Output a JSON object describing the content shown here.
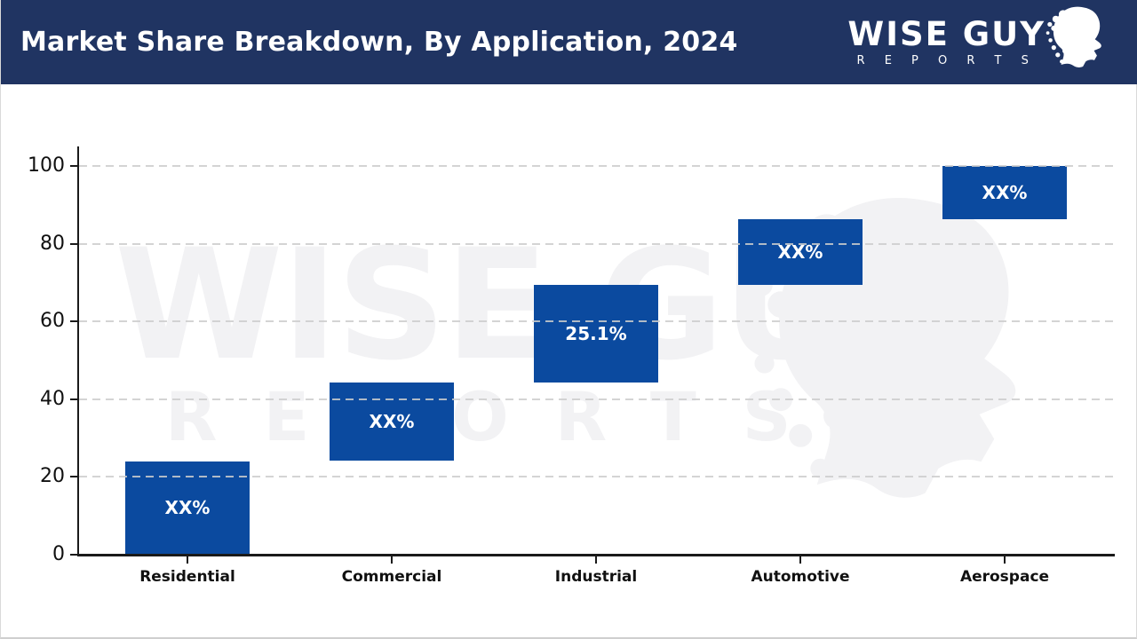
{
  "header": {
    "title": "Market Share Breakdown, By Application, 2024",
    "logo": {
      "line1": "WISE GUY",
      "line2": "R E P O R T S"
    }
  },
  "watermark": {
    "line1": "WISE GUY",
    "line2": "REPORTS"
  },
  "chart_data": {
    "type": "bar",
    "subtype": "floating-segment-waterfall",
    "title": "Market Share Breakdown, By Application, 2024",
    "categories": [
      "Residential",
      "Commercial",
      "Industrial",
      "Automotive",
      "Aerospace"
    ],
    "segments": [
      {
        "category": "Residential",
        "start": 0,
        "end": 24.0,
        "label": "XX%"
      },
      {
        "category": "Commercial",
        "start": 24.2,
        "end": 44.2,
        "label": "XX%"
      },
      {
        "category": "Industrial",
        "start": 44.3,
        "end": 69.4,
        "label": "25.1%"
      },
      {
        "category": "Automotive",
        "start": 69.3,
        "end": 86.4,
        "label": "XX%"
      },
      {
        "category": "Aerospace",
        "start": 86.4,
        "end": 100.0,
        "label": "XX%"
      }
    ],
    "xlabel": "",
    "ylabel": "",
    "ylim": [
      0,
      105
    ],
    "yticks": [
      0,
      20,
      40,
      60,
      80,
      100
    ],
    "grid": "horizontal-dashed",
    "legend": "none",
    "bar_color": "#0b4a9f",
    "bar_label_color": "#ffffff"
  },
  "colors": {
    "header_bg": "#203462",
    "bar": "#0b4a9f",
    "grid": "#d5d5d5",
    "axis": "#1a1a1a",
    "watermark": "#f2f2f4"
  }
}
